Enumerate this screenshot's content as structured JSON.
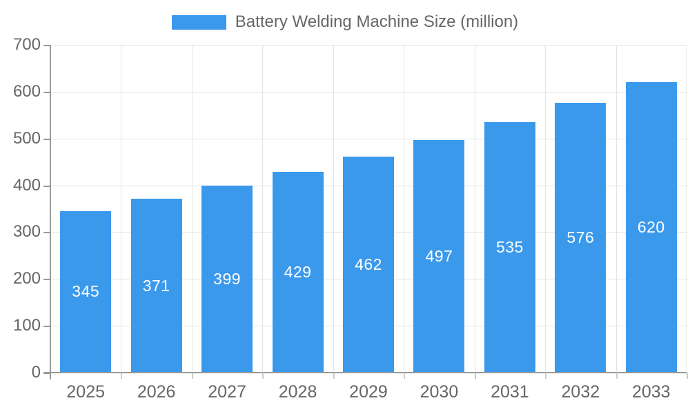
{
  "legend": {
    "label": "Battery Welding Machine Size (million)"
  },
  "chart_data": {
    "type": "bar",
    "title": "Battery Welding Machine Size (million)",
    "categories": [
      "2025",
      "2026",
      "2027",
      "2028",
      "2029",
      "2030",
      "2031",
      "2032",
      "2033"
    ],
    "values": [
      345,
      371,
      399,
      429,
      462,
      497,
      535,
      576,
      620
    ],
    "xlabel": "",
    "ylabel": "",
    "ylim": [
      0,
      700
    ],
    "yticks": [
      0,
      100,
      200,
      300,
      400,
      500,
      600,
      700
    ],
    "grid": true,
    "legend_position": "top-center",
    "bar_value_labels": true,
    "colors": {
      "bar": "#3B99EC",
      "bar_label": "#FFFFFF",
      "axis_text": "#666666",
      "grid_line": "#E3E3E3",
      "axis_line": "#999999",
      "minor_tick": "#CCCCCC",
      "background": "#FFFFFF"
    }
  }
}
